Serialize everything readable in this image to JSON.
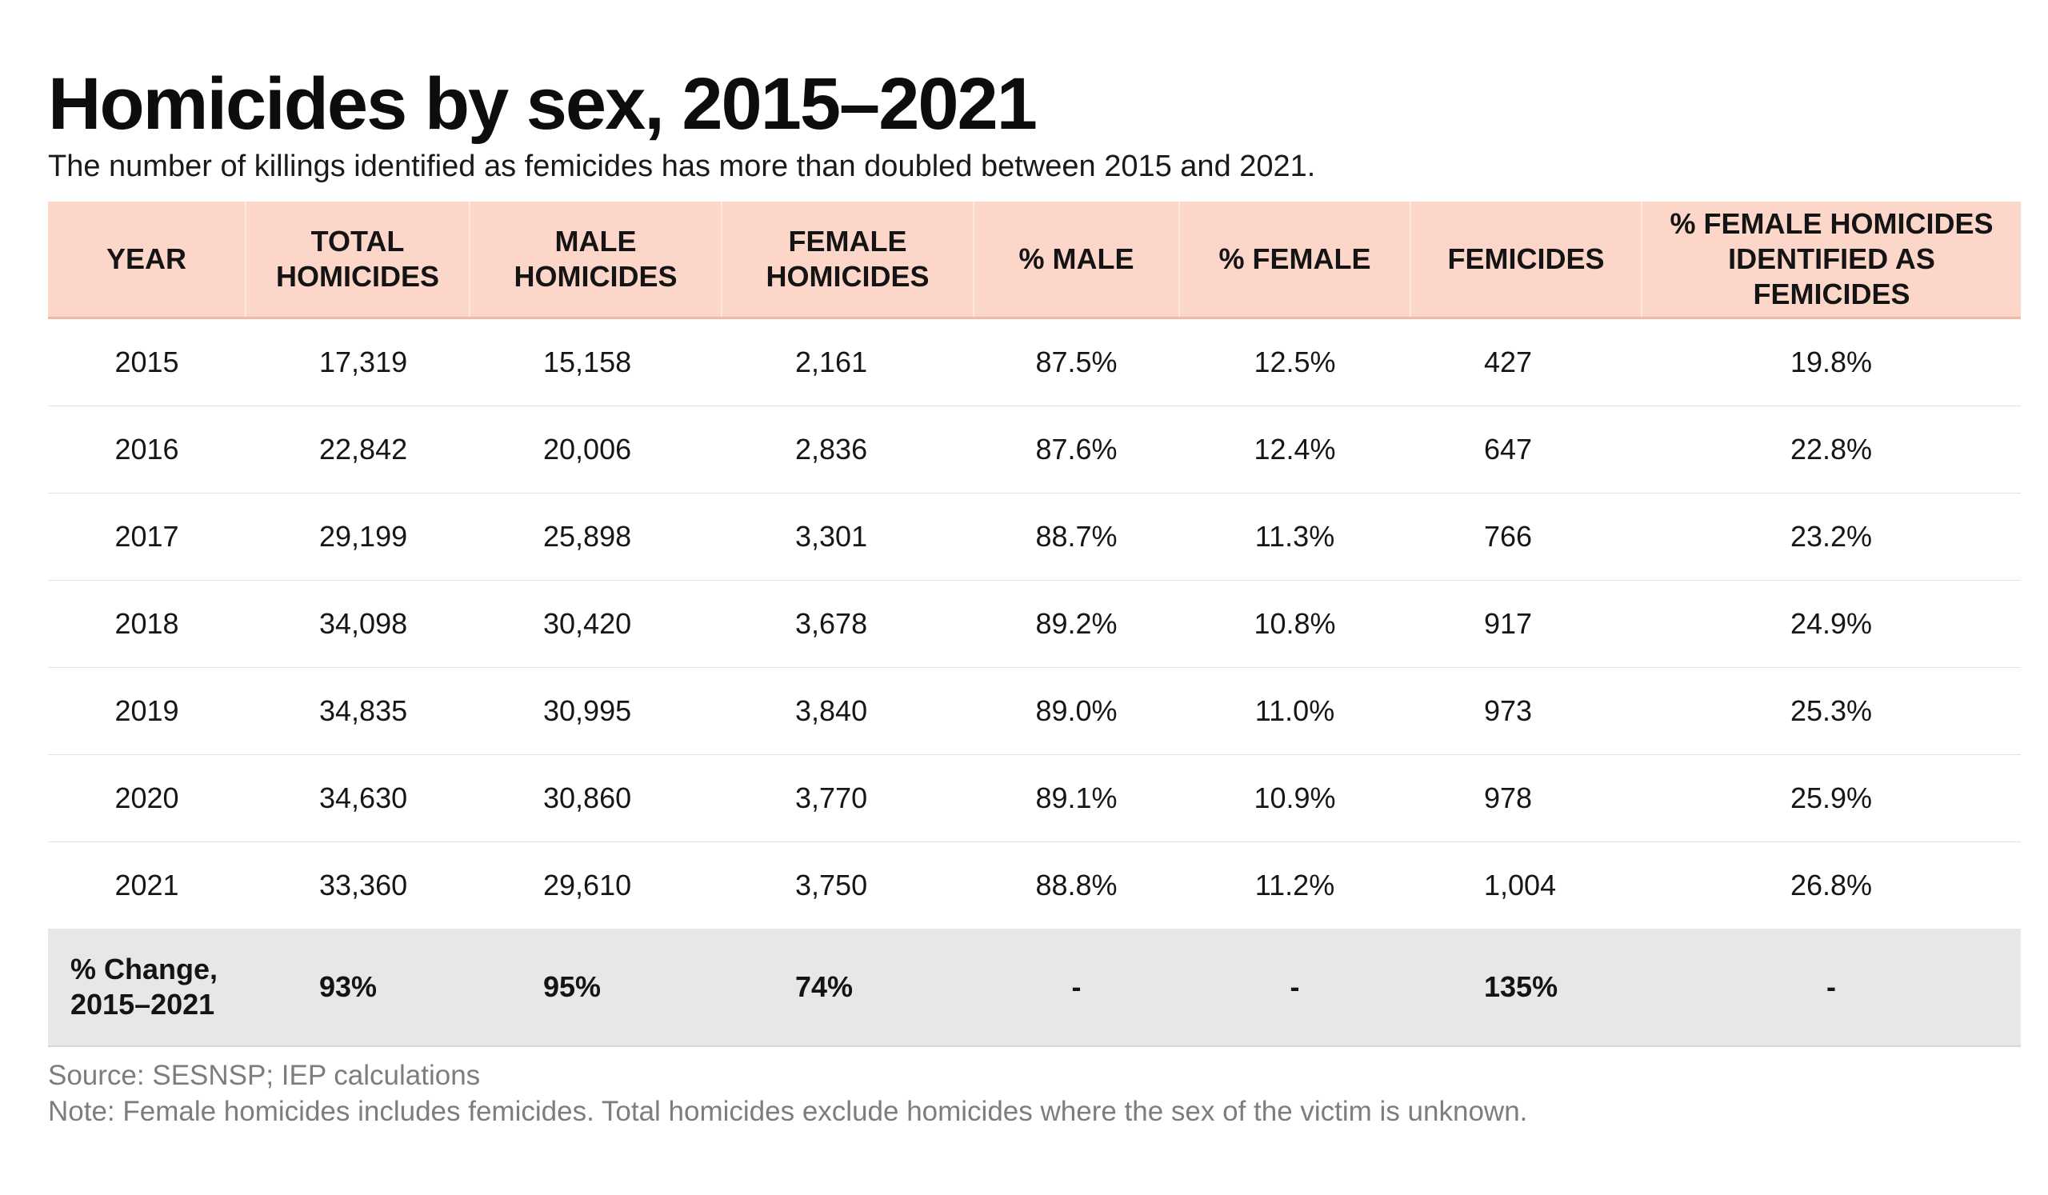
{
  "title": "Homicides by sex, 2015–2021",
  "subtitle": "The number of killings identified as femicides has more than doubled between 2015 and 2021.",
  "colors": {
    "header_background": "#fcd6c9",
    "summary_background": "#e6e7e8",
    "footnote_text": "#7d7d7d"
  },
  "chart_data": {
    "type": "table",
    "title": "Homicides by sex, 2015–2021",
    "columns": [
      "YEAR",
      "TOTAL HOMICIDES",
      "MALE HOMICIDES",
      "FEMALE HOMICIDES",
      "% MALE",
      "% FEMALE",
      "FEMICIDES",
      "% FEMALE HOMICIDES IDENTIFIED AS FEMICIDES"
    ],
    "rows": [
      [
        "2015",
        "17,319",
        "15,158",
        "2,161",
        "87.5%",
        "12.5%",
        "427",
        "19.8%"
      ],
      [
        "2016",
        "22,842",
        "20,006",
        "2,836",
        "87.6%",
        "12.4%",
        "647",
        "22.8%"
      ],
      [
        "2017",
        "29,199",
        "25,898",
        "3,301",
        "88.7%",
        "11.3%",
        "766",
        "23.2%"
      ],
      [
        "2018",
        "34,098",
        "30,420",
        "3,678",
        "89.2%",
        "10.8%",
        "917",
        "24.9%"
      ],
      [
        "2019",
        "34,835",
        "30,995",
        "3,840",
        "89.0%",
        "11.0%",
        "973",
        "25.3%"
      ],
      [
        "2020",
        "34,630",
        "30,860",
        "3,770",
        "89.1%",
        "10.9%",
        "978",
        "25.9%"
      ],
      [
        "2021",
        "33,360",
        "29,610",
        "3,750",
        "88.8%",
        "11.2%",
        "1,004",
        "26.8%"
      ]
    ],
    "summary": {
      "label_line1": "% Change,",
      "label_line2": "2015–2021",
      "values": [
        "93%",
        "95%",
        "74%",
        "-",
        "-",
        "135%",
        "-"
      ]
    }
  },
  "header": {
    "year": "YEAR",
    "total_l1": "TOTAL",
    "total_l2": "HOMICIDES",
    "male_l1": "MALE",
    "male_l2": "HOMICIDES",
    "female_l1": "FEMALE",
    "female_l2": "HOMICIDES",
    "pct_male": "% MALE",
    "pct_female": "% FEMALE",
    "femicides": "FEMICIDES",
    "pct_ident_l1": "% FEMALE HOMICIDES",
    "pct_ident_l2": "IDENTIFIED AS FEMICIDES"
  },
  "source": "Source: SESNSP; IEP calculations",
  "note": "Note: Female homicides includes femicides. Total homicides exclude homicides where the sex of the victim is unknown."
}
